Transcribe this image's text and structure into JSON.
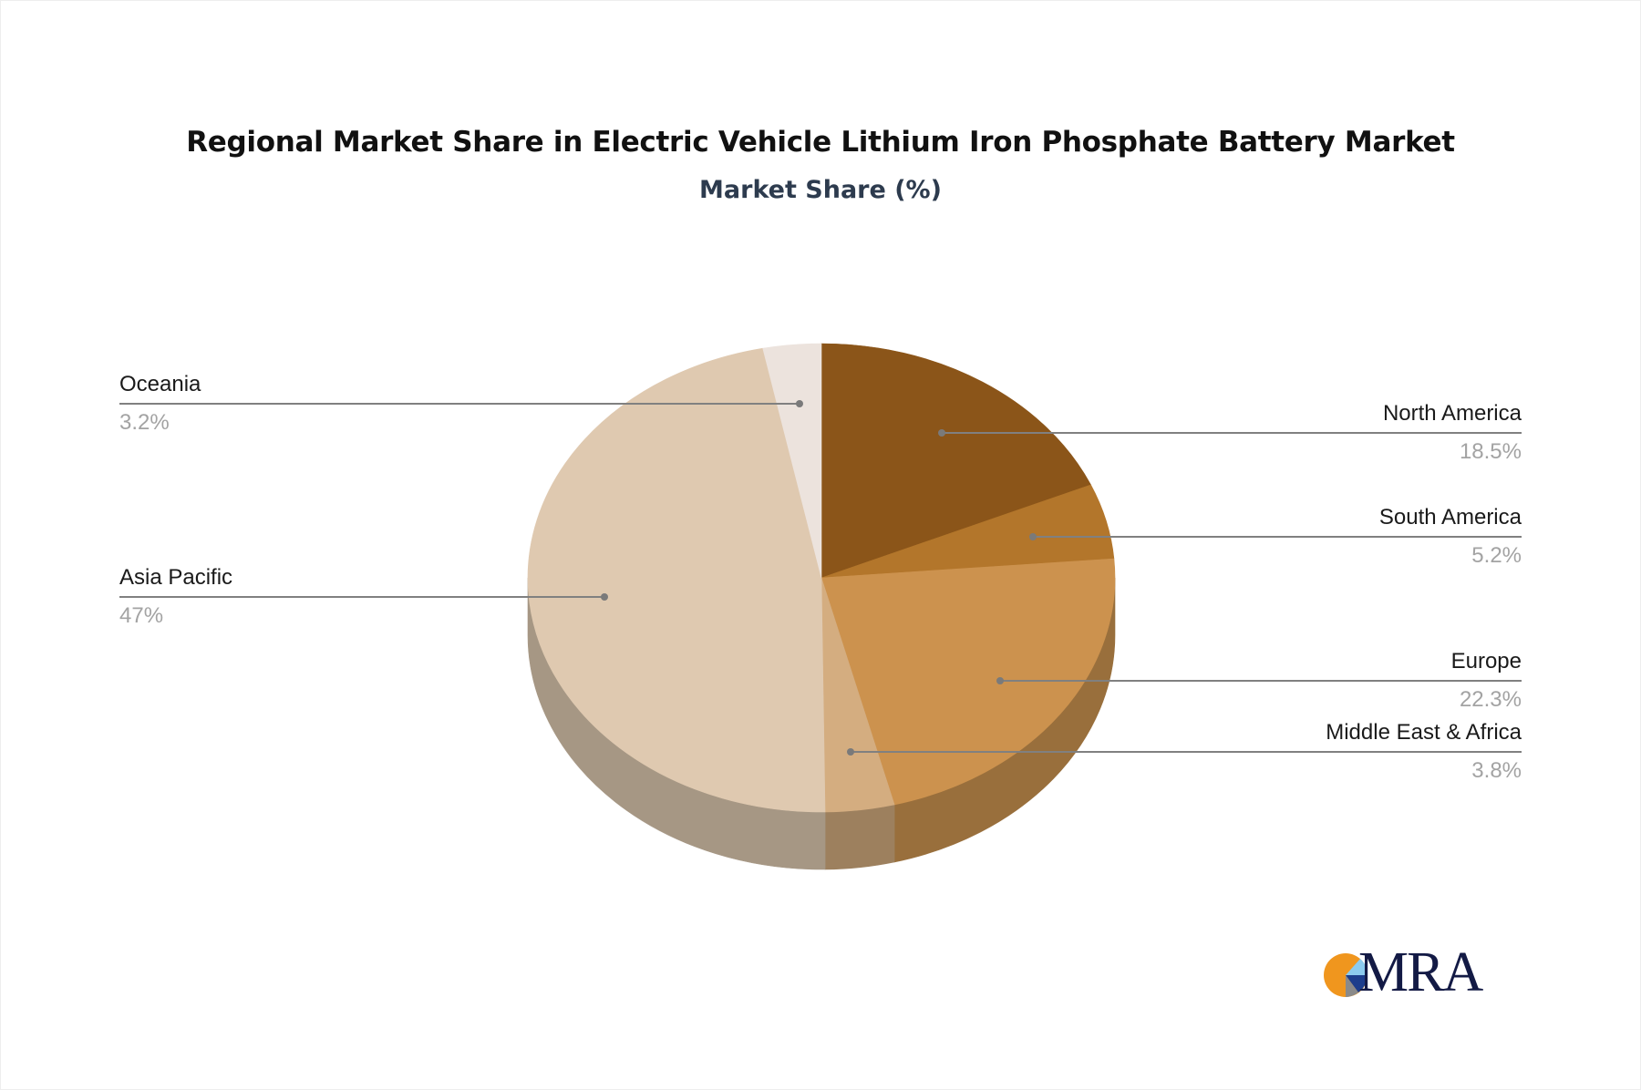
{
  "chart_data": {
    "type": "pie",
    "style": "3d",
    "title": "Regional Market Share in Electric Vehicle Lithium Iron Phosphate Battery Market",
    "subtitle": "Market Share (%)",
    "start_angle_deg": 0,
    "direction": "clockwise",
    "slices": [
      {
        "label": "North America",
        "value": 18.5,
        "display": "18.5%",
        "color": "#8b5519",
        "side_color": "#7a4a17",
        "side": "right"
      },
      {
        "label": "South America",
        "value": 5.2,
        "display": "5.2%",
        "color": "#b3762b",
        "side_color": "#976a3a",
        "side": "right"
      },
      {
        "label": "Europe",
        "value": 22.3,
        "display": "22.3%",
        "color": "#cc924e",
        "side_color": "#996f3c",
        "side": "right"
      },
      {
        "label": "Middle East & Africa",
        "value": 3.8,
        "display": "3.8%",
        "color": "#d4ad80",
        "side_color": "#9d805e",
        "side": "right"
      },
      {
        "label": "Asia Pacific",
        "value": 47,
        "display": "47%",
        "color": "#dfc9b0",
        "side_color": "#a69784",
        "side": "left"
      },
      {
        "label": "Oceania",
        "value": 3.2,
        "display": "3.2%",
        "color": "#ece3dd",
        "side_color": "#b8aea6",
        "side": "left"
      }
    ],
    "legend": "leader-line labels"
  },
  "header": {
    "title": "Regional Market Share in Electric Vehicle Lithium Iron Phosphate Battery Market",
    "subtitle": "Market Share (%)"
  },
  "labels": {
    "north_america": {
      "name": "North America",
      "value": "18.5%"
    },
    "south_america": {
      "name": "South America",
      "value": "5.2%"
    },
    "europe": {
      "name": "Europe",
      "value": "22.3%"
    },
    "mea": {
      "name": "Middle East & Africa",
      "value": "3.8%"
    },
    "asia_pacific": {
      "name": "Asia Pacific",
      "value": "47%"
    },
    "oceania": {
      "name": "Oceania",
      "value": "3.2%"
    }
  },
  "logo": {
    "text": "MRA",
    "colors": {
      "orange": "#f0961e",
      "light_blue": "#8ccbee",
      "navy": "#1c3d8c",
      "gray": "#8a8a8a",
      "text": "#131a45"
    }
  }
}
